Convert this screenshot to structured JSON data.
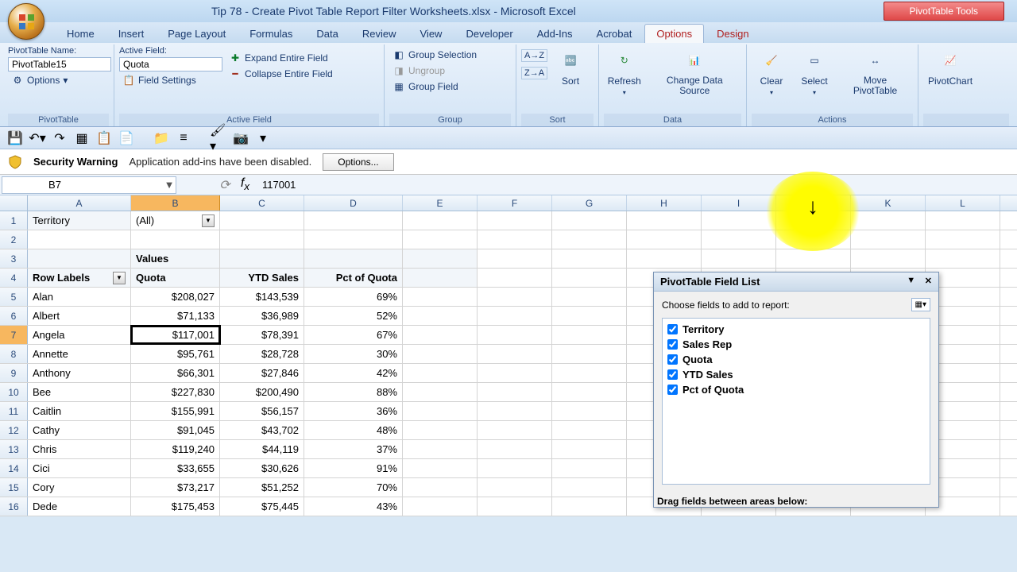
{
  "window": {
    "title": "Tip 78 - Create Pivot Table Report Filter Worksheets.xlsx - Microsoft Excel",
    "context_tools": "PivotTable Tools"
  },
  "tabs": [
    "Home",
    "Insert",
    "Page Layout",
    "Formulas",
    "Data",
    "Review",
    "View",
    "Developer",
    "Add-Ins",
    "Acrobat",
    "Options",
    "Design"
  ],
  "active_tab": 10,
  "ribbon": {
    "pivottable": {
      "name_label": "PivotTable Name:",
      "name_value": "PivotTable15",
      "options": "Options",
      "group": "PivotTable"
    },
    "active_field": {
      "label": "Active Field:",
      "value": "Quota",
      "field_settings": "Field Settings",
      "expand": "Expand Entire Field",
      "collapse": "Collapse Entire Field",
      "group": "Active Field"
    },
    "group": {
      "selection": "Group Selection",
      "ungroup": "Ungroup",
      "field": "Group Field",
      "group": "Group"
    },
    "sort": {
      "sort": "Sort",
      "group": "Sort"
    },
    "data": {
      "refresh": "Refresh",
      "change": "Change Data Source",
      "group": "Data"
    },
    "actions": {
      "clear": "Clear",
      "select": "Select",
      "move": "Move PivotTable",
      "group": "Actions"
    },
    "tools": {
      "chart": "PivotChart"
    }
  },
  "security": {
    "title": "Security Warning",
    "msg": "Application add-ins have been disabled.",
    "btn": "Options..."
  },
  "formula_bar": {
    "name": "B7",
    "value": "117001"
  },
  "columns": [
    "A",
    "B",
    "C",
    "D",
    "E",
    "F",
    "G",
    "H",
    "I",
    "J",
    "K",
    "L"
  ],
  "selected_col_idx": 1,
  "selected_row_idx": 6,
  "pivot": {
    "filter_label": "Territory",
    "filter_value": "(All)",
    "values_header": "Values",
    "row_labels": "Row Labels",
    "cols": [
      "Quota",
      "YTD Sales",
      "Pct of Quota"
    ],
    "rows": [
      {
        "name": "Alan",
        "quota": "$208,027",
        "ytd": "$143,539",
        "pct": "69%"
      },
      {
        "name": "Albert",
        "quota": "$71,133",
        "ytd": "$36,989",
        "pct": "52%"
      },
      {
        "name": "Angela",
        "quota": "$117,001",
        "ytd": "$78,391",
        "pct": "67%"
      },
      {
        "name": "Annette",
        "quota": "$95,761",
        "ytd": "$28,728",
        "pct": "30%"
      },
      {
        "name": "Anthony",
        "quota": "$66,301",
        "ytd": "$27,846",
        "pct": "42%"
      },
      {
        "name": "Bee",
        "quota": "$227,830",
        "ytd": "$200,490",
        "pct": "88%"
      },
      {
        "name": "Caitlin",
        "quota": "$155,991",
        "ytd": "$56,157",
        "pct": "36%"
      },
      {
        "name": "Cathy",
        "quota": "$91,045",
        "ytd": "$43,702",
        "pct": "48%"
      },
      {
        "name": "Chris",
        "quota": "$119,240",
        "ytd": "$44,119",
        "pct": "37%"
      },
      {
        "name": "Cici",
        "quota": "$33,655",
        "ytd": "$30,626",
        "pct": "91%"
      },
      {
        "name": "Cory",
        "quota": "$73,217",
        "ytd": "$51,252",
        "pct": "70%"
      },
      {
        "name": "Dede",
        "quota": "$175,453",
        "ytd": "$75,445",
        "pct": "43%"
      }
    ]
  },
  "field_list": {
    "title": "PivotTable Field List",
    "sub": "Choose fields to add to report:",
    "fields": [
      "Territory",
      "Sales Rep",
      "Quota",
      "YTD Sales",
      "Pct of Quota"
    ],
    "drag": "Drag fields between areas below:"
  },
  "colors": {
    "accent": "#1a3a6e",
    "ribbon": "#d9e8f5",
    "highlight": "#fffc00",
    "select": "#f7b75f"
  }
}
